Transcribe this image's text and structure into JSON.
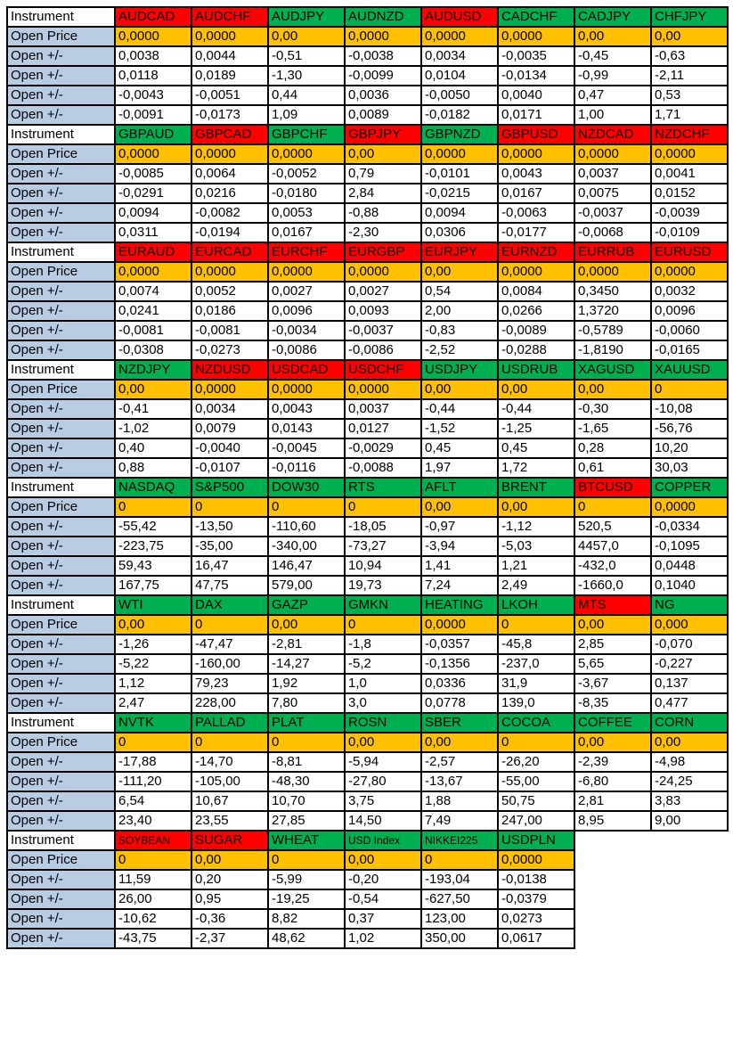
{
  "labels": {
    "instrument": "Instrument",
    "open_price": "Open Price",
    "open_change": "Open +/-"
  },
  "colors": {
    "red": "#FF0000",
    "green": "#00B050",
    "orange": "#FFC000",
    "label_blue": "#B8CCE4",
    "border": "#000000"
  },
  "blocks": [
    {
      "instruments": [
        {
          "name": "AUDCAD",
          "color": "red"
        },
        {
          "name": "AUDCHF",
          "color": "red"
        },
        {
          "name": "AUDJPY",
          "color": "green"
        },
        {
          "name": "AUDNZD",
          "color": "green"
        },
        {
          "name": "AUDUSD",
          "color": "red"
        },
        {
          "name": "CADCHF",
          "color": "green"
        },
        {
          "name": "CADJPY",
          "color": "green"
        },
        {
          "name": "CHFJPY",
          "color": "green"
        }
      ],
      "open_price": [
        "0,0000",
        "0,0000",
        "0,00",
        "0,0000",
        "0,0000",
        "0,0000",
        "0,00",
        "0,00"
      ],
      "changes": [
        [
          "0,0038",
          "0,0044",
          "-0,51",
          "-0,0038",
          "0,0034",
          "-0,0035",
          "-0,45",
          "-0,63"
        ],
        [
          "0,0118",
          "0,0189",
          "-1,30",
          "-0,0099",
          "0,0104",
          "-0,0134",
          "-0,99",
          "-2,11"
        ],
        [
          "-0,0043",
          "-0,0051",
          "0,44",
          "0,0036",
          "-0,0050",
          "0,0040",
          "0,47",
          "0,53"
        ],
        [
          "-0,0091",
          "-0,0173",
          "1,09",
          "0,0089",
          "-0,0182",
          "0,0171",
          "1,00",
          "1,71"
        ]
      ]
    },
    {
      "instruments": [
        {
          "name": "GBPAUD",
          "color": "green"
        },
        {
          "name": "GBPCAD",
          "color": "red"
        },
        {
          "name": "GBPCHF",
          "color": "green"
        },
        {
          "name": "GBPJPY",
          "color": "red"
        },
        {
          "name": "GBPNZD",
          "color": "green"
        },
        {
          "name": "GBPUSD",
          "color": "red"
        },
        {
          "name": "NZDCAD",
          "color": "red"
        },
        {
          "name": "NZDCHF",
          "color": "red"
        }
      ],
      "open_price": [
        "0,0000",
        "0,0000",
        "0,0000",
        "0,00",
        "0,0000",
        "0,0000",
        "0,0000",
        "0,0000"
      ],
      "changes": [
        [
          "-0,0085",
          "0,0064",
          "-0,0052",
          "0,79",
          "-0,0101",
          "0,0043",
          "0,0037",
          "0,0041"
        ],
        [
          "-0,0291",
          "0,0216",
          "-0,0180",
          "2,84",
          "-0,0215",
          "0,0167",
          "0,0075",
          "0,0152"
        ],
        [
          "0,0094",
          "-0,0082",
          "0,0053",
          "-0,88",
          "0,0094",
          "-0,0063",
          "-0,0037",
          "-0,0039"
        ],
        [
          "0,0311",
          "-0,0194",
          "0,0167",
          "-2,30",
          "0,0306",
          "-0,0177",
          "-0,0068",
          "-0,0109"
        ]
      ]
    },
    {
      "instruments": [
        {
          "name": "EURAUD",
          "color": "red"
        },
        {
          "name": "EURCAD",
          "color": "red"
        },
        {
          "name": "EURCHF",
          "color": "red"
        },
        {
          "name": "EURGBP",
          "color": "red"
        },
        {
          "name": "EURJPY",
          "color": "red"
        },
        {
          "name": "EURNZD",
          "color": "red"
        },
        {
          "name": "EURRUB",
          "color": "red"
        },
        {
          "name": "EURUSD",
          "color": "red"
        }
      ],
      "open_price": [
        "0,0000",
        "0,0000",
        "0,0000",
        "0,0000",
        "0,00",
        "0,0000",
        "0,0000",
        "0,0000"
      ],
      "changes": [
        [
          "0,0074",
          "0,0052",
          "0,0027",
          "0,0027",
          "0,54",
          "0,0084",
          "0,3450",
          "0,0032"
        ],
        [
          "0,0241",
          "0,0186",
          "0,0096",
          "0,0093",
          "2,00",
          "0,0266",
          "1,3720",
          "0,0096"
        ],
        [
          "-0,0081",
          "-0,0081",
          "-0,0034",
          "-0,0037",
          "-0,83",
          "-0,0089",
          "-0,5789",
          "-0,0060"
        ],
        [
          "-0,0308",
          "-0,0273",
          "-0,0086",
          "-0,0086",
          "-2,52",
          "-0,0288",
          "-1,8190",
          "-0,0165"
        ]
      ]
    },
    {
      "instruments": [
        {
          "name": "NZDJPY",
          "color": "green"
        },
        {
          "name": "NZDUSD",
          "color": "red"
        },
        {
          "name": "USDCAD",
          "color": "red"
        },
        {
          "name": "USDCHF",
          "color": "red"
        },
        {
          "name": "USDJPY",
          "color": "green"
        },
        {
          "name": "USDRUB",
          "color": "green"
        },
        {
          "name": "XAGUSD",
          "color": "green"
        },
        {
          "name": "XAUUSD",
          "color": "green"
        }
      ],
      "open_price": [
        "0,00",
        "0,0000",
        "0,0000",
        "0,0000",
        "0,00",
        "0,00",
        "0,00",
        "0"
      ],
      "changes": [
        [
          "-0,41",
          "0,0034",
          "0,0043",
          "0,0037",
          "-0,44",
          "-0,44",
          "-0,30",
          "-10,08"
        ],
        [
          "-1,02",
          "0,0079",
          "0,0143",
          "0,0127",
          "-1,52",
          "-1,25",
          "-1,65",
          "-56,76"
        ],
        [
          "0,40",
          "-0,0040",
          "-0,0045",
          "-0,0029",
          "0,45",
          "0,45",
          "0,28",
          "10,20"
        ],
        [
          "0,88",
          "-0,0107",
          "-0,0116",
          "-0,0088",
          "1,97",
          "1,72",
          "0,61",
          "30,03"
        ]
      ]
    },
    {
      "instruments": [
        {
          "name": "NASDAQ",
          "color": "green"
        },
        {
          "name": "S&P500",
          "color": "green"
        },
        {
          "name": "DOW30",
          "color": "green"
        },
        {
          "name": "RTS",
          "color": "green"
        },
        {
          "name": "AFLT",
          "color": "green"
        },
        {
          "name": "BRENT",
          "color": "green"
        },
        {
          "name": "BTCUSD",
          "color": "red"
        },
        {
          "name": "COPPER",
          "color": "green"
        }
      ],
      "open_price": [
        "0",
        "0",
        "0",
        "0",
        "0,00",
        "0,00",
        "0",
        "0,0000"
      ],
      "changes": [
        [
          "-55,42",
          "-13,50",
          "-110,60",
          "-18,05",
          "-0,97",
          "-1,12",
          "520,5",
          "-0,0334"
        ],
        [
          "-223,75",
          "-35,00",
          "-340,00",
          "-73,27",
          "-3,94",
          "-5,03",
          "4457,0",
          "-0,1095"
        ],
        [
          "59,43",
          "16,47",
          "146,47",
          "10,94",
          "1,41",
          "1,21",
          "-432,0",
          "0,0448"
        ],
        [
          "167,75",
          "47,75",
          "579,00",
          "19,73",
          "7,24",
          "2,49",
          "-1660,0",
          "0,1040"
        ]
      ]
    },
    {
      "instruments": [
        {
          "name": "WTI",
          "color": "green"
        },
        {
          "name": "DAX",
          "color": "green"
        },
        {
          "name": "GAZP",
          "color": "green"
        },
        {
          "name": "GMKN",
          "color": "green"
        },
        {
          "name": "HEATING",
          "color": "green"
        },
        {
          "name": "LKOH",
          "color": "green"
        },
        {
          "name": "MTS",
          "color": "red"
        },
        {
          "name": "NG",
          "color": "green"
        }
      ],
      "open_price": [
        "0,00",
        "0",
        "0,00",
        "0",
        "0,0000",
        "0",
        "0,00",
        "0,000"
      ],
      "changes": [
        [
          "-1,26",
          "-47,47",
          "-2,81",
          "-1,8",
          "-0,0357",
          "-45,8",
          "2,85",
          "-0,070"
        ],
        [
          "-5,22",
          "-160,00",
          "-14,27",
          "-5,2",
          "-0,1356",
          "-237,0",
          "5,65",
          "-0,227"
        ],
        [
          "1,12",
          "79,23",
          "1,92",
          "1,0",
          "0,0336",
          "31,9",
          "-3,67",
          "0,137"
        ],
        [
          "2,47",
          "228,00",
          "7,80",
          "3,0",
          "0,0778",
          "139,0",
          "-8,35",
          "0,477"
        ]
      ]
    },
    {
      "instruments": [
        {
          "name": "NVTK",
          "color": "green"
        },
        {
          "name": "PALLAD",
          "color": "green"
        },
        {
          "name": "PLAT",
          "color": "green"
        },
        {
          "name": "ROSN",
          "color": "green"
        },
        {
          "name": "SBER",
          "color": "green"
        },
        {
          "name": "COCOA",
          "color": "green"
        },
        {
          "name": "COFFEE",
          "color": "green"
        },
        {
          "name": "CORN",
          "color": "green"
        }
      ],
      "open_price": [
        "0",
        "0",
        "0",
        "0,00",
        "0,00",
        "0",
        "0,00",
        "0,00"
      ],
      "changes": [
        [
          "-17,88",
          "-14,70",
          "-8,81",
          "-5,94",
          "-2,57",
          "-26,20",
          "-2,39",
          "-4,98"
        ],
        [
          "-111,20",
          "-105,00",
          "-48,30",
          "-27,80",
          "-13,67",
          "-55,00",
          "-6,80",
          "-24,25"
        ],
        [
          "6,54",
          "10,67",
          "10,70",
          "3,75",
          "1,88",
          "50,75",
          "2,81",
          "3,83"
        ],
        [
          "23,40",
          "23,55",
          "27,85",
          "14,50",
          "7,49",
          "247,00",
          "8,95",
          "9,00"
        ]
      ]
    },
    {
      "instruments": [
        {
          "name": "SOYBEAN",
          "color": "red",
          "small": true
        },
        {
          "name": "SUGAR",
          "color": "red"
        },
        {
          "name": "WHEAT",
          "color": "green"
        },
        {
          "name": "USD Index",
          "color": "green",
          "small": true
        },
        {
          "name": "NIKKEI225",
          "color": "green",
          "small": true
        },
        {
          "name": "USDPLN",
          "color": "green"
        }
      ],
      "open_price": [
        "0",
        "0,00",
        "0",
        "0,00",
        "0",
        "0,0000"
      ],
      "changes": [
        [
          "11,59",
          "0,20",
          "-5,99",
          "-0,20",
          "-193,04",
          "-0,0138"
        ],
        [
          "26,00",
          "0,95",
          "-19,25",
          "-0,54",
          "-627,50",
          "-0,0379"
        ],
        [
          "-10,62",
          "-0,36",
          "8,82",
          "0,37",
          "123,00",
          "0,0273"
        ],
        [
          "-43,75",
          "-2,37",
          "48,62",
          "1,02",
          "350,00",
          "0,0617"
        ]
      ]
    }
  ]
}
